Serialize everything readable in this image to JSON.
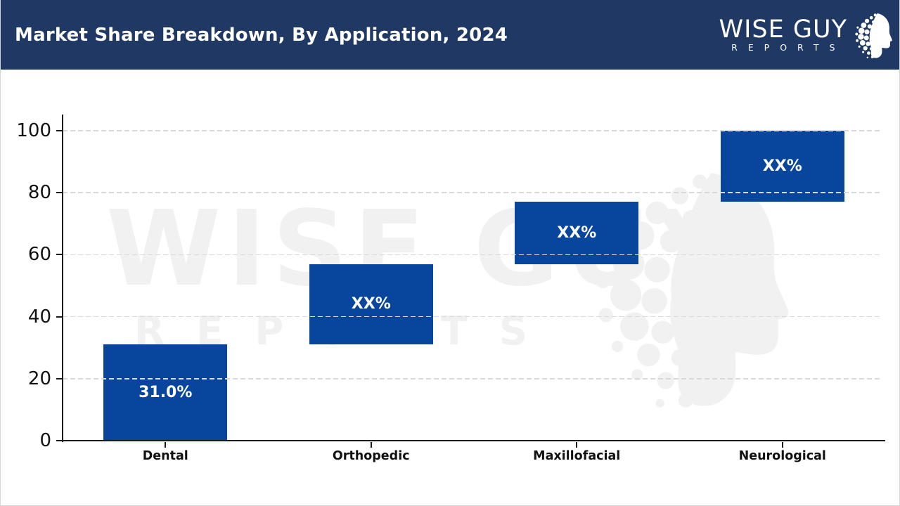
{
  "header": {
    "title": "Market Share Breakdown, By Application, 2024",
    "logo": {
      "line1": "WISE GUY",
      "line2": "REPORTS"
    }
  },
  "watermark": {
    "line1": "WISE GUY",
    "line2": "REPORTS"
  },
  "chart_data": {
    "type": "bar",
    "subtype": "waterfall",
    "title": "Market Share Breakdown, By Application, 2024",
    "categories": [
      "Dental",
      "Orthopedic",
      "Maxillofacial",
      "Neurological"
    ],
    "segments": [
      {
        "category": "Dental",
        "start": 0,
        "end": 31,
        "label": "31.0%"
      },
      {
        "category": "Orthopedic",
        "start": 31,
        "end": 57,
        "label": "XX%"
      },
      {
        "category": "Maxillofacial",
        "start": 57,
        "end": 77,
        "label": "XX%"
      },
      {
        "category": "Neurological",
        "start": 77,
        "end": 100,
        "label": "XX%"
      }
    ],
    "yticks": [
      0,
      20,
      40,
      60,
      80,
      100
    ],
    "ylim": [
      0,
      105
    ],
    "xlabel": "",
    "ylabel": "",
    "grid": "horizontal-dashed",
    "legend": "none",
    "colors": {
      "bar": "#08459c",
      "bar_label": "#ffffff",
      "grid": "#d9d9d9",
      "axis": "#1c1c1c",
      "header_bg": "#1f3864",
      "watermark": "#f1f1f1"
    }
  }
}
